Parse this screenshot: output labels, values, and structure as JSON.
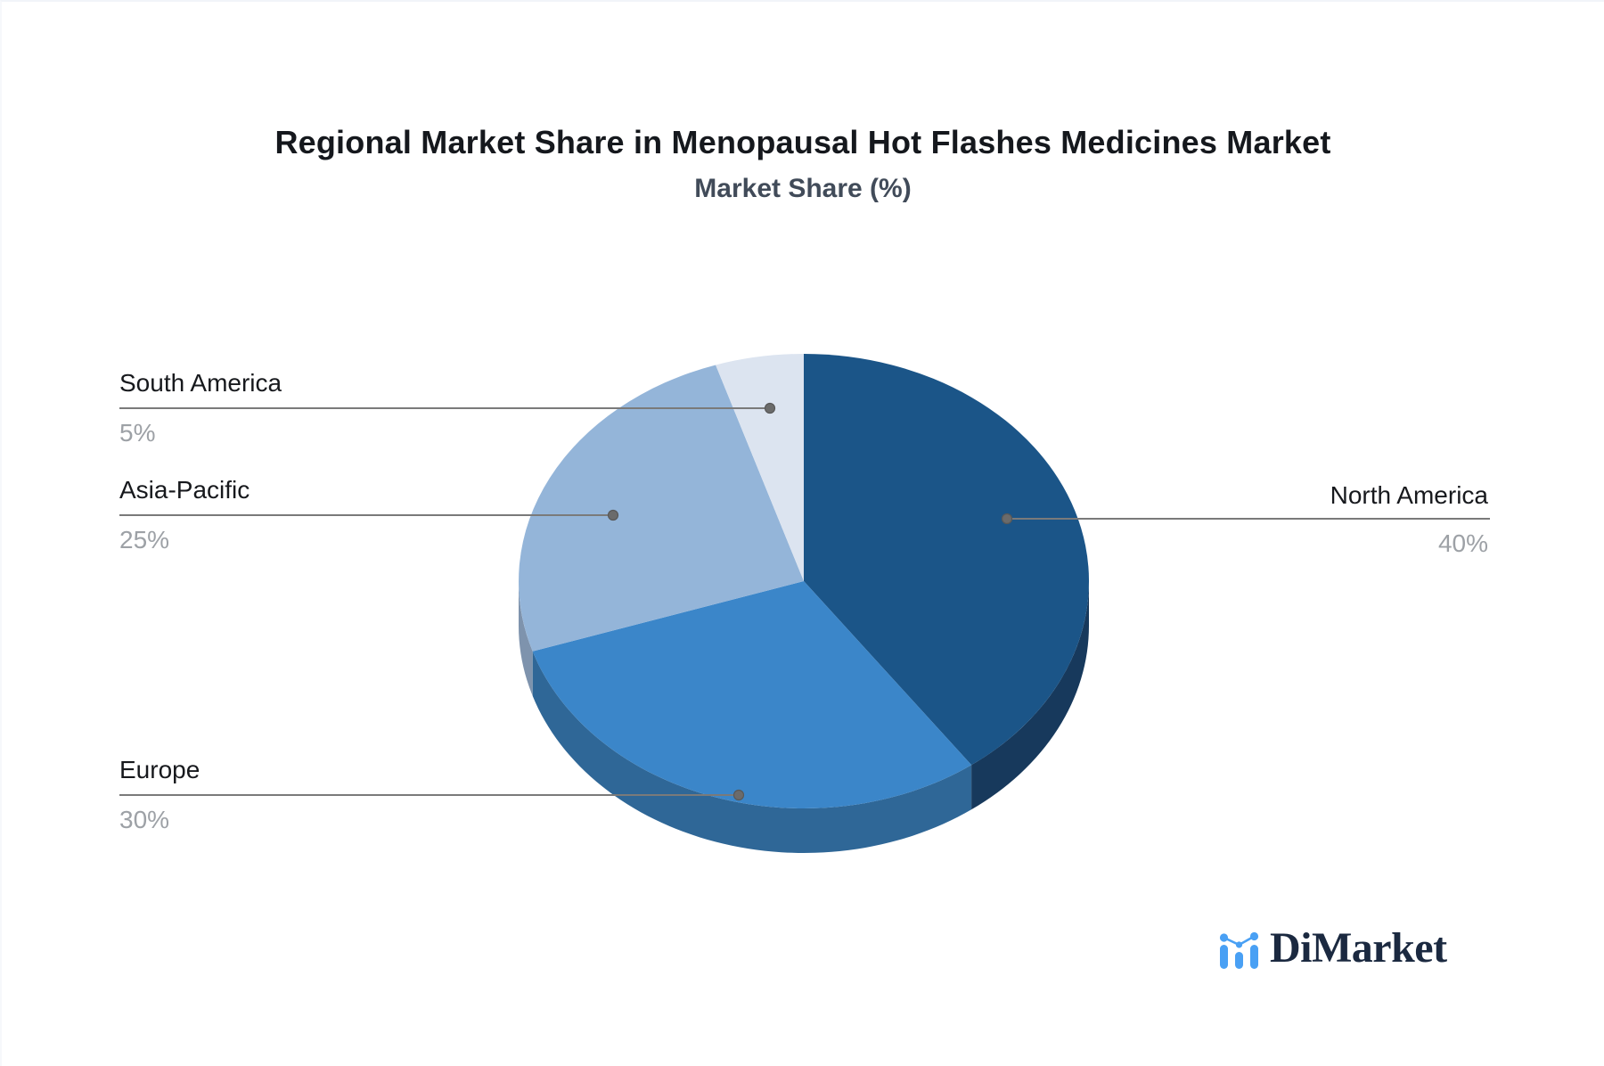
{
  "header": {
    "title": "Regional Market Share in Menopausal Hot Flashes Medicines Market",
    "subtitle": "Market Share (%)"
  },
  "chart_data": {
    "type": "pie",
    "style": "3d",
    "title": "Regional Market Share in Menopausal Hot Flashes Medicines Market",
    "subtitle": "Market Share (%)",
    "unit": "%",
    "start_angle_deg": 0,
    "direction": "clockwise",
    "categories": [
      "North America",
      "Europe",
      "Asia-Pacific",
      "South America"
    ],
    "values": [
      40,
      30,
      25,
      5
    ],
    "percent_labels": [
      "40%",
      "30%",
      "25%",
      "5%"
    ],
    "top_colors": [
      "#1b5588",
      "#3b86c9",
      "#94b5d9",
      "#dce4f0"
    ],
    "side_colors": [
      "#17395c",
      "#2f6797",
      "#7e93ad",
      "#b9c4d6"
    ],
    "legend_position": "callout-labels",
    "grid": false
  },
  "callouts": [
    {
      "name": "South America",
      "value_label": "5%",
      "side": "left"
    },
    {
      "name": "Asia-Pacific",
      "value_label": "25%",
      "side": "left"
    },
    {
      "name": "Europe",
      "value_label": "30%",
      "side": "left"
    },
    {
      "name": "North America",
      "value_label": "40%",
      "side": "right"
    }
  ],
  "leader_style": {
    "line_color": "#7a7a7a",
    "dot_color": "#6b6b6b"
  },
  "logo": {
    "text": "DiMarket",
    "icon": "bar-chart-trend-icon",
    "icon_color": "#49a0f4",
    "text_color": "#1b2940"
  }
}
